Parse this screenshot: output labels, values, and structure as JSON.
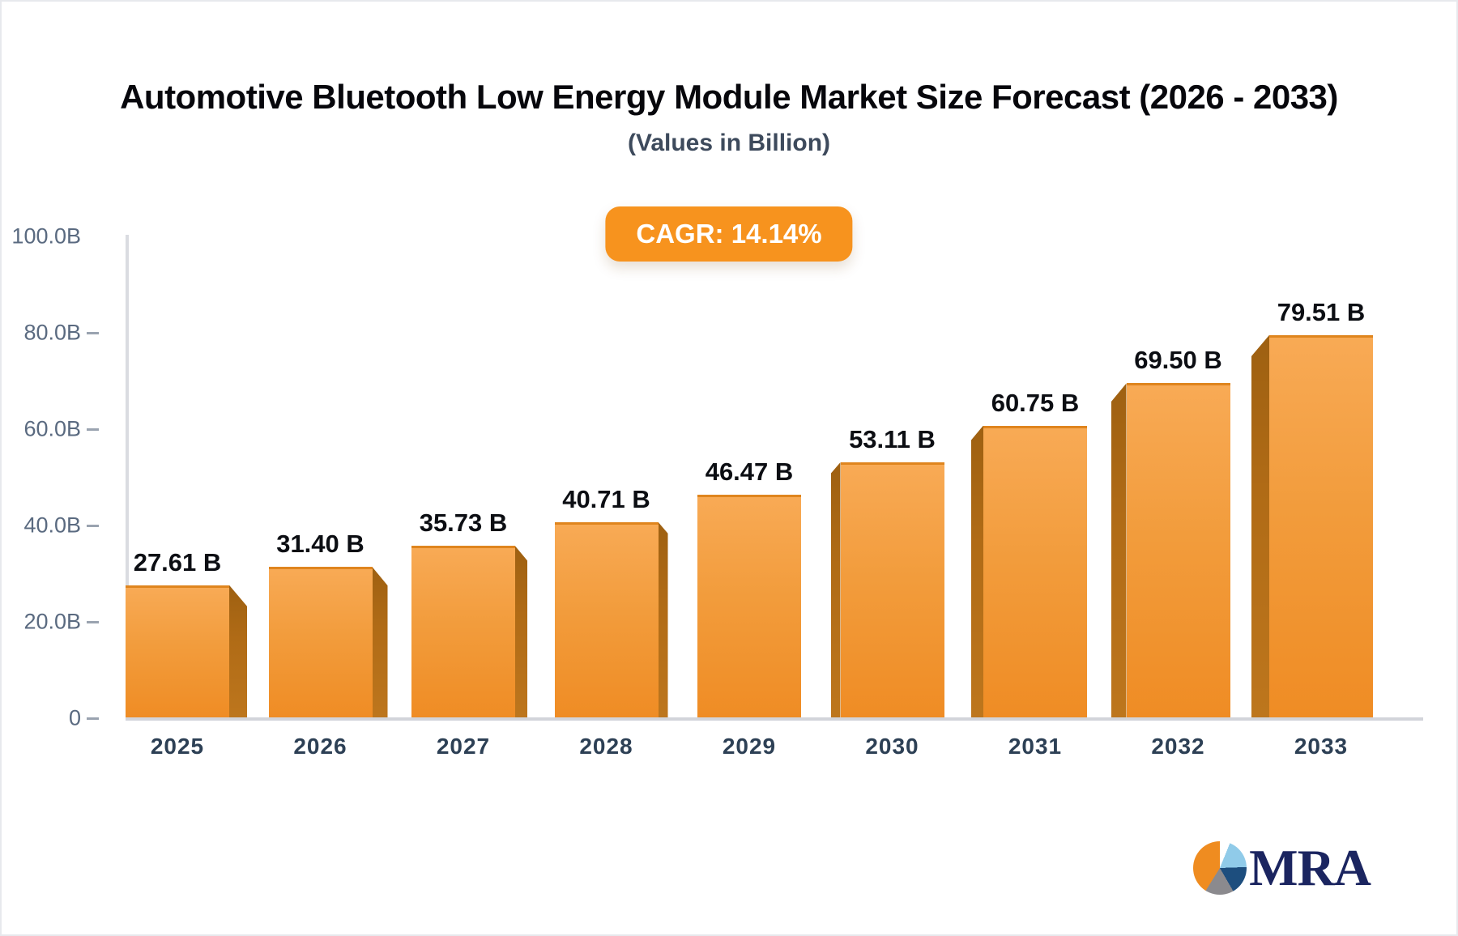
{
  "header": {
    "title": "Automotive Bluetooth Low Energy Module Market Size Forecast (2026 - 2033)",
    "subtitle": "(Values in Billion)"
  },
  "badge": {
    "label": "CAGR: 14.14%",
    "color": "#f7931e"
  },
  "chart_data": {
    "type": "bar",
    "title": "Automotive Bluetooth Low Energy Module Market Size Forecast (2026 - 2033)",
    "subtitle": "(Values in Billion)",
    "unit": "Billion",
    "categories": [
      "2025",
      "2026",
      "2027",
      "2028",
      "2029",
      "2030",
      "2031",
      "2032",
      "2033"
    ],
    "values": [
      27.61,
      31.4,
      35.73,
      40.71,
      46.47,
      53.11,
      60.75,
      69.5,
      79.51
    ],
    "bar_labels": [
      "27.61 B",
      "31.40 B",
      "35.73 B",
      "40.71 B",
      "46.47 B",
      "53.11 B",
      "60.75 B",
      "69.50 B",
      "79.51 B"
    ],
    "cagr": "CAGR: 14.14%",
    "xlabel": "",
    "ylabel": "",
    "ylim": [
      0,
      100
    ],
    "yticks": [
      {
        "label": "100.0B",
        "value": 100
      },
      {
        "label": "80.0B",
        "value": 80
      },
      {
        "label": "60.0B",
        "value": 60
      },
      {
        "label": "40.0B",
        "value": 40
      },
      {
        "label": "20.0B",
        "value": 20
      },
      {
        "label": "0",
        "value": 0
      }
    ],
    "grid": false,
    "legend": "none",
    "colors": {
      "bar_top": "#f8aa55",
      "bar_bottom": "#ef8c24",
      "bar_side": "#b06b16",
      "axis": "#d2d4da",
      "tick_text": "#5a6a80",
      "category_text": "#2d4055",
      "value_text": "#0c0e13"
    }
  },
  "logo": {
    "text": "MRA",
    "icon": "pie-chart-icon",
    "colors": {
      "orange": "#ef8c20",
      "light_blue": "#90cbe9",
      "navy": "#1d4e7e",
      "gray": "#8b8a8e",
      "text": "#1b2560"
    }
  }
}
